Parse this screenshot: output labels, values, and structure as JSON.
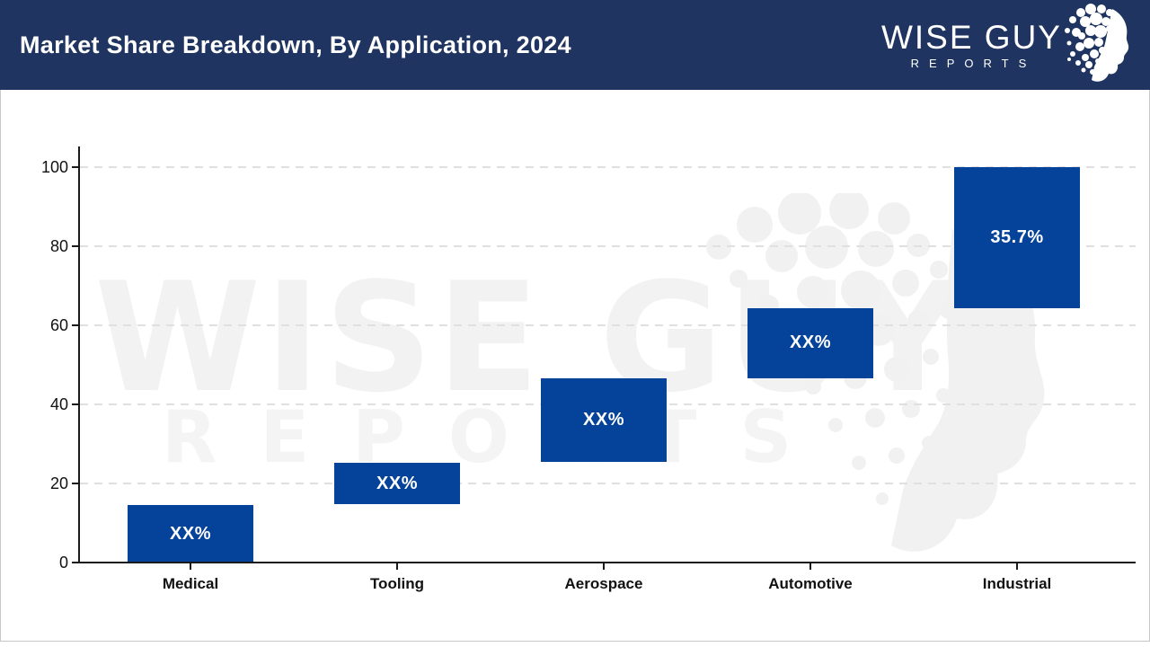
{
  "header": {
    "title": "Market Share Breakdown, By Application, 2024",
    "bg_color": "#1f3460",
    "logo": {
      "line1": "WISE GUY",
      "line2": "REPORTS"
    }
  },
  "watermark": {
    "line1": "WISE GUY",
    "line2": "REPORTS"
  },
  "chart_data": {
    "type": "bar",
    "subtype": "floating-waterfall",
    "title": "Market Share Breakdown, By Application, 2024",
    "categories": [
      "Medical",
      "Tooling",
      "Aerospace",
      "Automotive",
      "Industrial"
    ],
    "series": [
      {
        "name": "Market Share",
        "segments": [
          {
            "category": "Medical",
            "start": 0,
            "end": 14.5,
            "label": "XX%"
          },
          {
            "category": "Tooling",
            "start": 14.7,
            "end": 25.2,
            "label": "XX%"
          },
          {
            "category": "Aerospace",
            "start": 25.4,
            "end": 46.5,
            "label": "XX%"
          },
          {
            "category": "Automotive",
            "start": 46.7,
            "end": 64.3,
            "label": "XX%"
          },
          {
            "category": "Industrial",
            "start": 64.3,
            "end": 100,
            "label": "35.7%"
          }
        ]
      }
    ],
    "xlabel": "",
    "ylabel": "",
    "ylim": [
      0,
      100
    ],
    "yticks": [
      0,
      20,
      40,
      60,
      80,
      100
    ],
    "grid": "horizontal-dashed",
    "legend": "none",
    "bar_color": "#05429a",
    "bar_label_color": "#ffffff"
  }
}
